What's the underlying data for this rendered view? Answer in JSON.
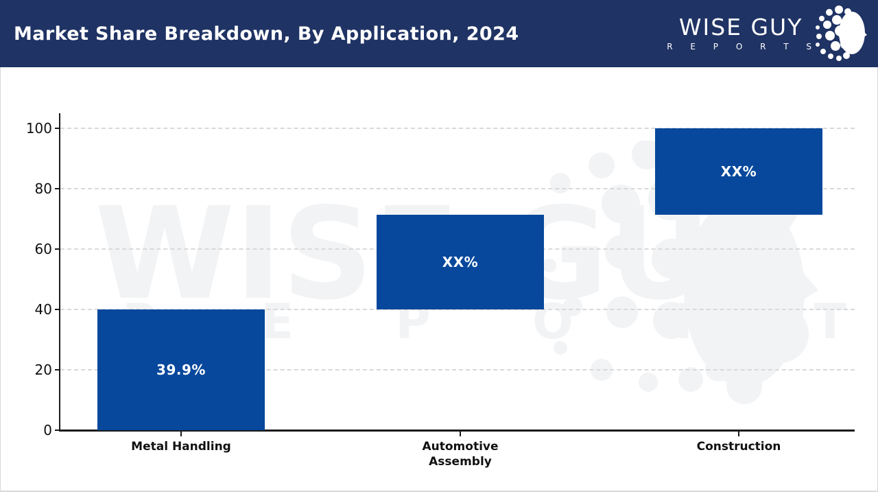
{
  "header": {
    "title": "Market Share Breakdown, By Application, 2024",
    "bg_color": "#1f3364",
    "text_color": "#ffffff",
    "logo": {
      "line1": "WISE GUY",
      "line2": "R E P O R T S"
    }
  },
  "watermark": {
    "line1": "WISE GUY",
    "line2": "R E P O R T S",
    "color": "#f2f3f5"
  },
  "chart_data": {
    "type": "bar",
    "subtype": "floating-segment-waterfall",
    "title": "Market Share Breakdown, By Application, 2024",
    "categories": [
      "Metal Handling",
      "Automotive Assembly",
      "Construction"
    ],
    "tick_labels": [
      "Metal Handling",
      "Automotive\nAssembly",
      "Construction"
    ],
    "segments": [
      {
        "category": "Metal Handling",
        "start": 0,
        "end": 39.9,
        "label": "39.9%"
      },
      {
        "category": "Automotive Assembly",
        "start": 39.9,
        "end": 71.3,
        "label": "XX%"
      },
      {
        "category": "Construction",
        "start": 71.3,
        "end": 100,
        "label": "XX%"
      }
    ],
    "bar_color": "#07489c",
    "bar_label_color": "#ffffff",
    "ylim": [
      0,
      100
    ],
    "yticks": [
      0,
      20,
      40,
      60,
      80,
      100
    ],
    "grid": "horizontal dashed",
    "legend": "none",
    "xlabel": "",
    "ylabel": ""
  }
}
